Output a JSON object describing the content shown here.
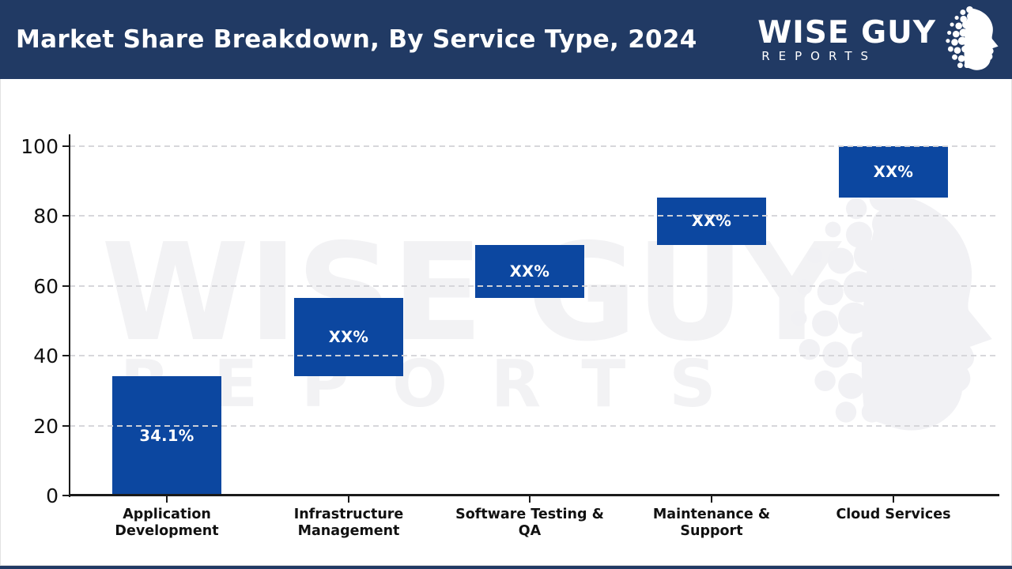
{
  "header": {
    "title": "Market Share Breakdown, By Service Type, 2024",
    "logo": {
      "line1": "WISE GUY",
      "line2": "REPORTS"
    }
  },
  "watermark": {
    "line1": "WISE GUY",
    "line2": "REPORTS"
  },
  "chart_data": {
    "type": "bar",
    "subtype": "waterfall",
    "title": "Market Share Breakdown, By Service Type, 2024",
    "categories": [
      "Application Development",
      "Infrastructure Management",
      "Software Testing & QA",
      "Maintenance & Support",
      "Cloud Services"
    ],
    "category_lines": [
      [
        "Application",
        "Development"
      ],
      [
        "Infrastructure",
        "Management"
      ],
      [
        "Software Testing &",
        "QA"
      ],
      [
        "Maintenance &",
        "Support"
      ],
      [
        "Cloud Services"
      ]
    ],
    "segments": [
      {
        "category": "Application Development",
        "start": 0,
        "end": 34.1,
        "label": "34.1%"
      },
      {
        "category": "Infrastructure Management",
        "start": 34.1,
        "end": 56.6,
        "label": "XX%"
      },
      {
        "category": "Software Testing & QA",
        "start": 56.6,
        "end": 71.8,
        "label": "XX%"
      },
      {
        "category": "Maintenance & Support",
        "start": 71.8,
        "end": 85.4,
        "label": "XX%"
      },
      {
        "category": "Cloud Services",
        "start": 85.4,
        "end": 100,
        "label": "XX%"
      }
    ],
    "ylim": [
      0,
      100
    ],
    "yticks": [
      0,
      20,
      40,
      60,
      80,
      100
    ],
    "grid": {
      "axis": "y",
      "style": "dashed",
      "drawn_over_bars": true
    },
    "legend": null,
    "colors": {
      "bar": "#0C47A0",
      "bar_label": "#FFFFFF",
      "header_bg": "#213A64",
      "gridline": "#D5D5D9",
      "axis": "#1A1A1A",
      "watermark": "#F2F2F4"
    }
  }
}
